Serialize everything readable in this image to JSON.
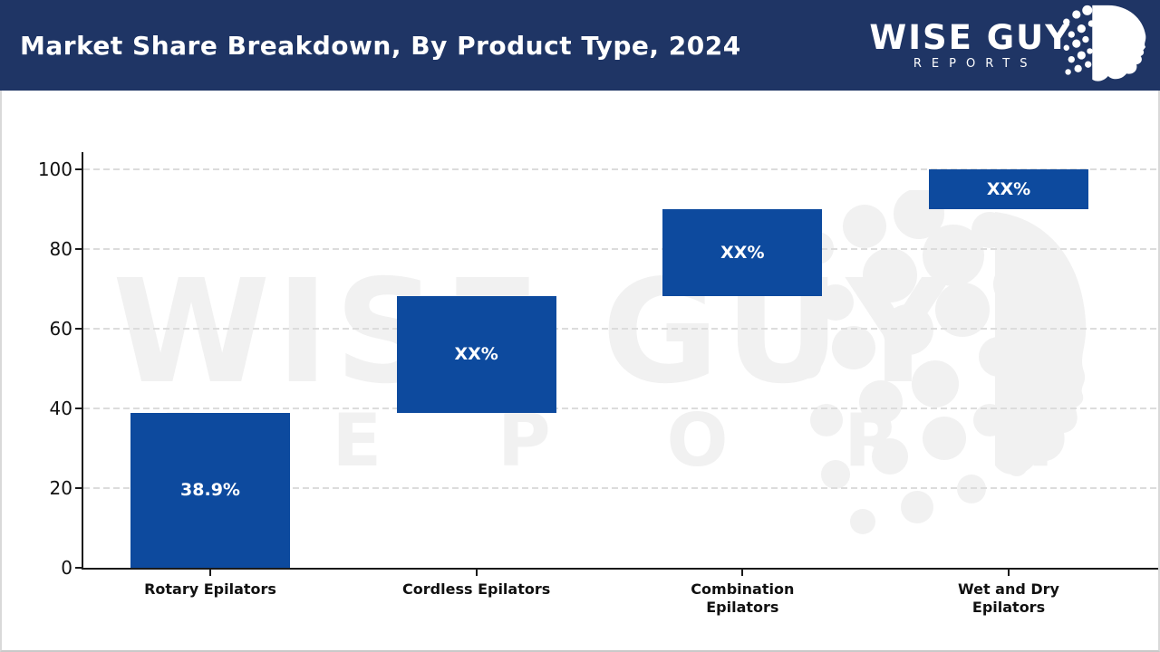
{
  "header": {
    "title": "Market Share Breakdown, By Product Type, 2024",
    "logo": {
      "line1": "WISE GUY",
      "line2": "REPORTS"
    },
    "bg_color": "#1f3565"
  },
  "watermark": {
    "line1": "WISE GUY",
    "line2": "R E P O R T S"
  },
  "chart_data": {
    "type": "bar",
    "subtype": "waterfall",
    "title": "Market Share Breakdown, By Product Type, 2024",
    "xlabel": "",
    "ylabel": "",
    "categories": [
      "Rotary Epilators",
      "Cordless Epilators",
      "Combination Epilators",
      "Wet and Dry Epilators"
    ],
    "segments": [
      {
        "category": "Rotary Epilators",
        "start": 0,
        "end": 38.9,
        "label": "38.9%"
      },
      {
        "category": "Cordless Epilators",
        "start": 38.9,
        "end": 68.2,
        "label": "XX%"
      },
      {
        "category": "Combination Epilators",
        "start": 68.2,
        "end": 90.0,
        "label": "XX%"
      },
      {
        "category": "Wet and Dry Epilators",
        "start": 90.0,
        "end": 100,
        "label": "XX%"
      }
    ],
    "yticks": [
      0,
      20,
      40,
      60,
      80,
      100
    ],
    "ylim": [
      0,
      100
    ],
    "bar_color": "#0d4a9e",
    "grid": "horizontal-dashed",
    "legend": "none"
  }
}
